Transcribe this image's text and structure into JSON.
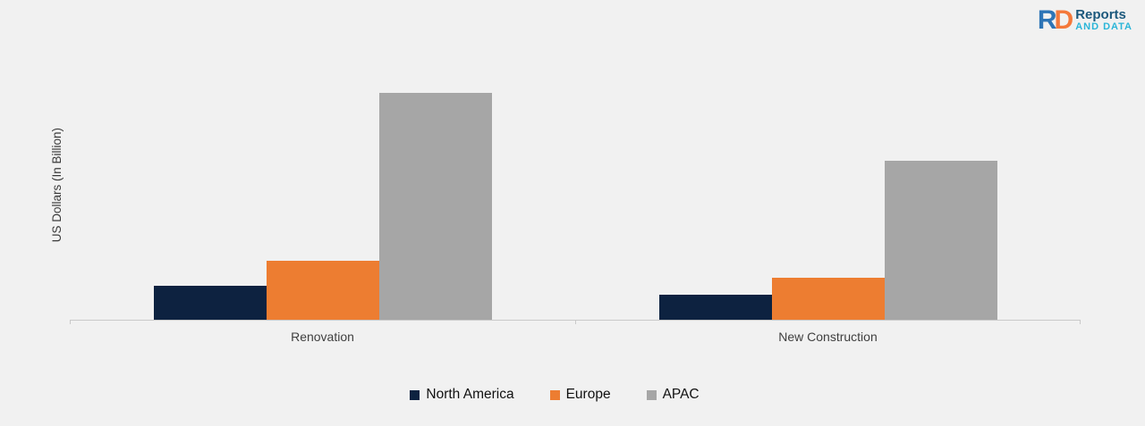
{
  "brand": {
    "logo_mark_r": "R",
    "logo_mark_d": "D",
    "logo_text_main": "Reports",
    "logo_text_sub": "AND DATA",
    "logo_r_color": "#2e75b6",
    "logo_d_color": "#f4793b",
    "logo_main_color": "#1b587c",
    "logo_sub_color": "#2ab5d8"
  },
  "chart_data": {
    "type": "bar",
    "title": "",
    "xlabel": "",
    "ylabel": "US Dollars  (In Billion)",
    "categories": [
      "Renovation",
      "New Construction"
    ],
    "series": [
      {
        "name": "North America",
        "color": "#0d2240",
        "values": [
          15,
          11
        ]
      },
      {
        "name": "Europe",
        "color": "#ed7d31",
        "values": [
          26,
          18.5
        ]
      },
      {
        "name": "APAC",
        "color": "#a6a6a6",
        "values": [
          100,
          70
        ]
      }
    ],
    "ylim": [
      0,
      114
    ],
    "grid": false,
    "legend_position": "bottom",
    "background_color": "#f1f1f1",
    "axis_color": "#c9c9c9"
  }
}
